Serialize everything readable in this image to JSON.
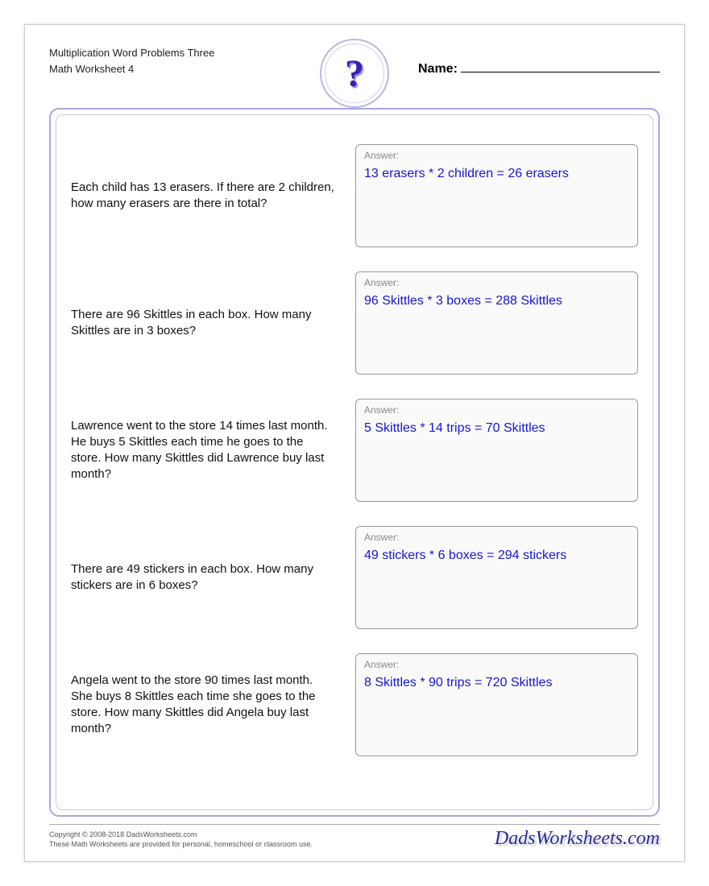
{
  "header": {
    "title_line1": "Multiplication Word Problems Three",
    "title_line2": "Math Worksheet 4",
    "name_label": "Name:"
  },
  "answer_label": "Answer:",
  "problems": [
    {
      "question": "Each child has 13 erasers. If there are 2 children, how many erasers are there in total?",
      "answer": "13 erasers * 2 children = 26 erasers"
    },
    {
      "question": "There are 96 Skittles in each box. How many Skittles are in 3 boxes?",
      "answer": "96 Skittles * 3 boxes = 288 Skittles"
    },
    {
      "question": "Lawrence went to the store 14 times last month. He buys 5 Skittles each time he goes to the store. How many Skittles did Lawrence buy last month?",
      "answer": "5 Skittles * 14 trips = 70 Skittles"
    },
    {
      "question": "There are 49 stickers in each box. How many stickers are in 6 boxes?",
      "answer": "49 stickers * 6 boxes = 294 stickers"
    },
    {
      "question": "Angela went to the store 90 times last month. She buys 8 Skittles each time she goes to the store. How many Skittles did Angela buy last month?",
      "answer": "8 Skittles * 90 trips = 720 Skittles"
    }
  ],
  "footer": {
    "copyright": "Copyright © 2008-2018 DadsWorksheets.com",
    "note": "These Math Worksheets are provided for personal, homeschool or classroom use.",
    "brand": "DadsWorksheets.com"
  },
  "colors": {
    "frame_border": "#a8a8e0",
    "answer_text": "#1515d8",
    "label_gray": "#888888"
  }
}
